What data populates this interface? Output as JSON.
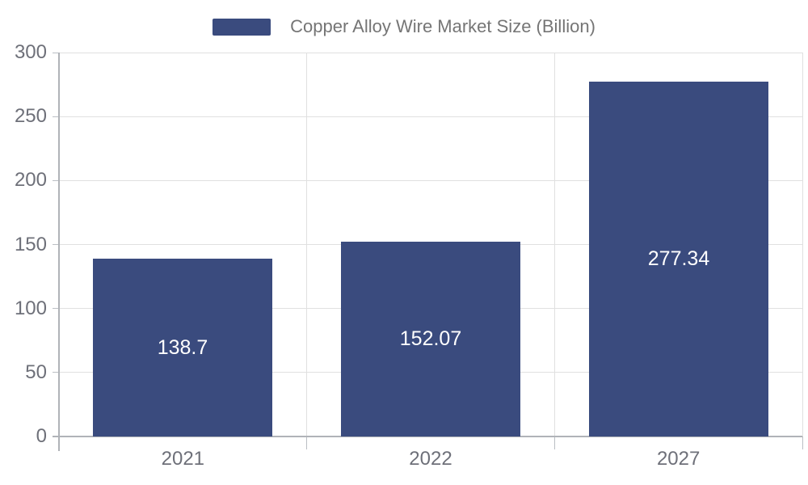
{
  "legend": {
    "label": "Copper Alloy Wire Market Size (Billion)"
  },
  "chart_data": {
    "type": "bar",
    "title": "",
    "xlabel": "",
    "ylabel": "",
    "categories": [
      "2021",
      "2022",
      "2027"
    ],
    "values": [
      138.7,
      152.07,
      277.34
    ],
    "series_name": "Copper Alloy Wire Market Size (Billion)",
    "data_labels": [
      "138.7",
      "152.07",
      "277.34"
    ],
    "ylim": [
      0,
      300
    ],
    "yticks": [
      0,
      50,
      100,
      150,
      200,
      250,
      300
    ],
    "grid": true,
    "legend_position": "top",
    "bar_color": "#3A4B7E",
    "data_label_color": "#ffffff",
    "axis_label_color": "#6E7079",
    "legend_text_color": "#757575",
    "gridline_color": "#e0e0e0",
    "axis_line_color": "#b0b3b8"
  }
}
